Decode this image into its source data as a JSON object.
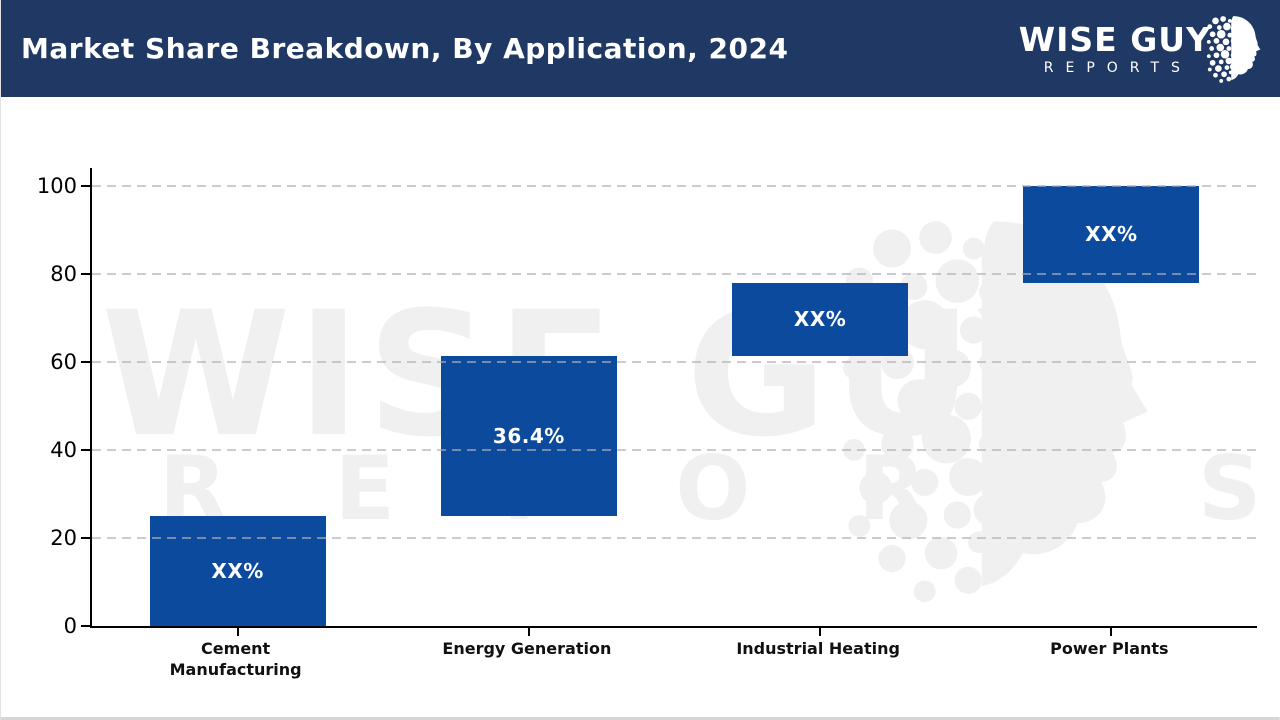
{
  "header": {
    "title": "Market Share Breakdown, By Application, 2024",
    "logo": {
      "wordmark": "WISE GUY",
      "subtext": "REPORTS"
    }
  },
  "watermark": {
    "wordmark": "WISE GUY",
    "subtext": "REPORTS"
  },
  "chart_data": {
    "type": "bar",
    "subtype": "floating-waterfall",
    "title": "Market Share Breakdown, By Application, 2024",
    "categories": [
      "Cement\nManufacturing",
      "Energy Generation",
      "Industrial Heating",
      "Power Plants"
    ],
    "segments": [
      {
        "category": "Cement Manufacturing",
        "start": 0,
        "end": 25,
        "height_pct": 25,
        "label": "XX%"
      },
      {
        "category": "Energy Generation",
        "start": 25,
        "end": 61.4,
        "height_pct": 36.4,
        "label": "36.4%"
      },
      {
        "category": "Industrial Heating",
        "start": 61.4,
        "end": 78,
        "height_pct": 16.6,
        "label": "XX%"
      },
      {
        "category": "Power Plants",
        "start": 78,
        "end": 100,
        "height_pct": 22,
        "label": "XX%"
      }
    ],
    "yticks": [
      0,
      20,
      40,
      60,
      80,
      100
    ],
    "ylim": [
      0,
      104
    ],
    "grid": true,
    "legend": false,
    "colors": {
      "header_bg": "#1f3864",
      "bar": "#0b4a9d",
      "axis": "#000000",
      "grid": "#b0b0b0",
      "watermark": "#f0f0f1",
      "bar_label_text": "#ffffff"
    }
  }
}
